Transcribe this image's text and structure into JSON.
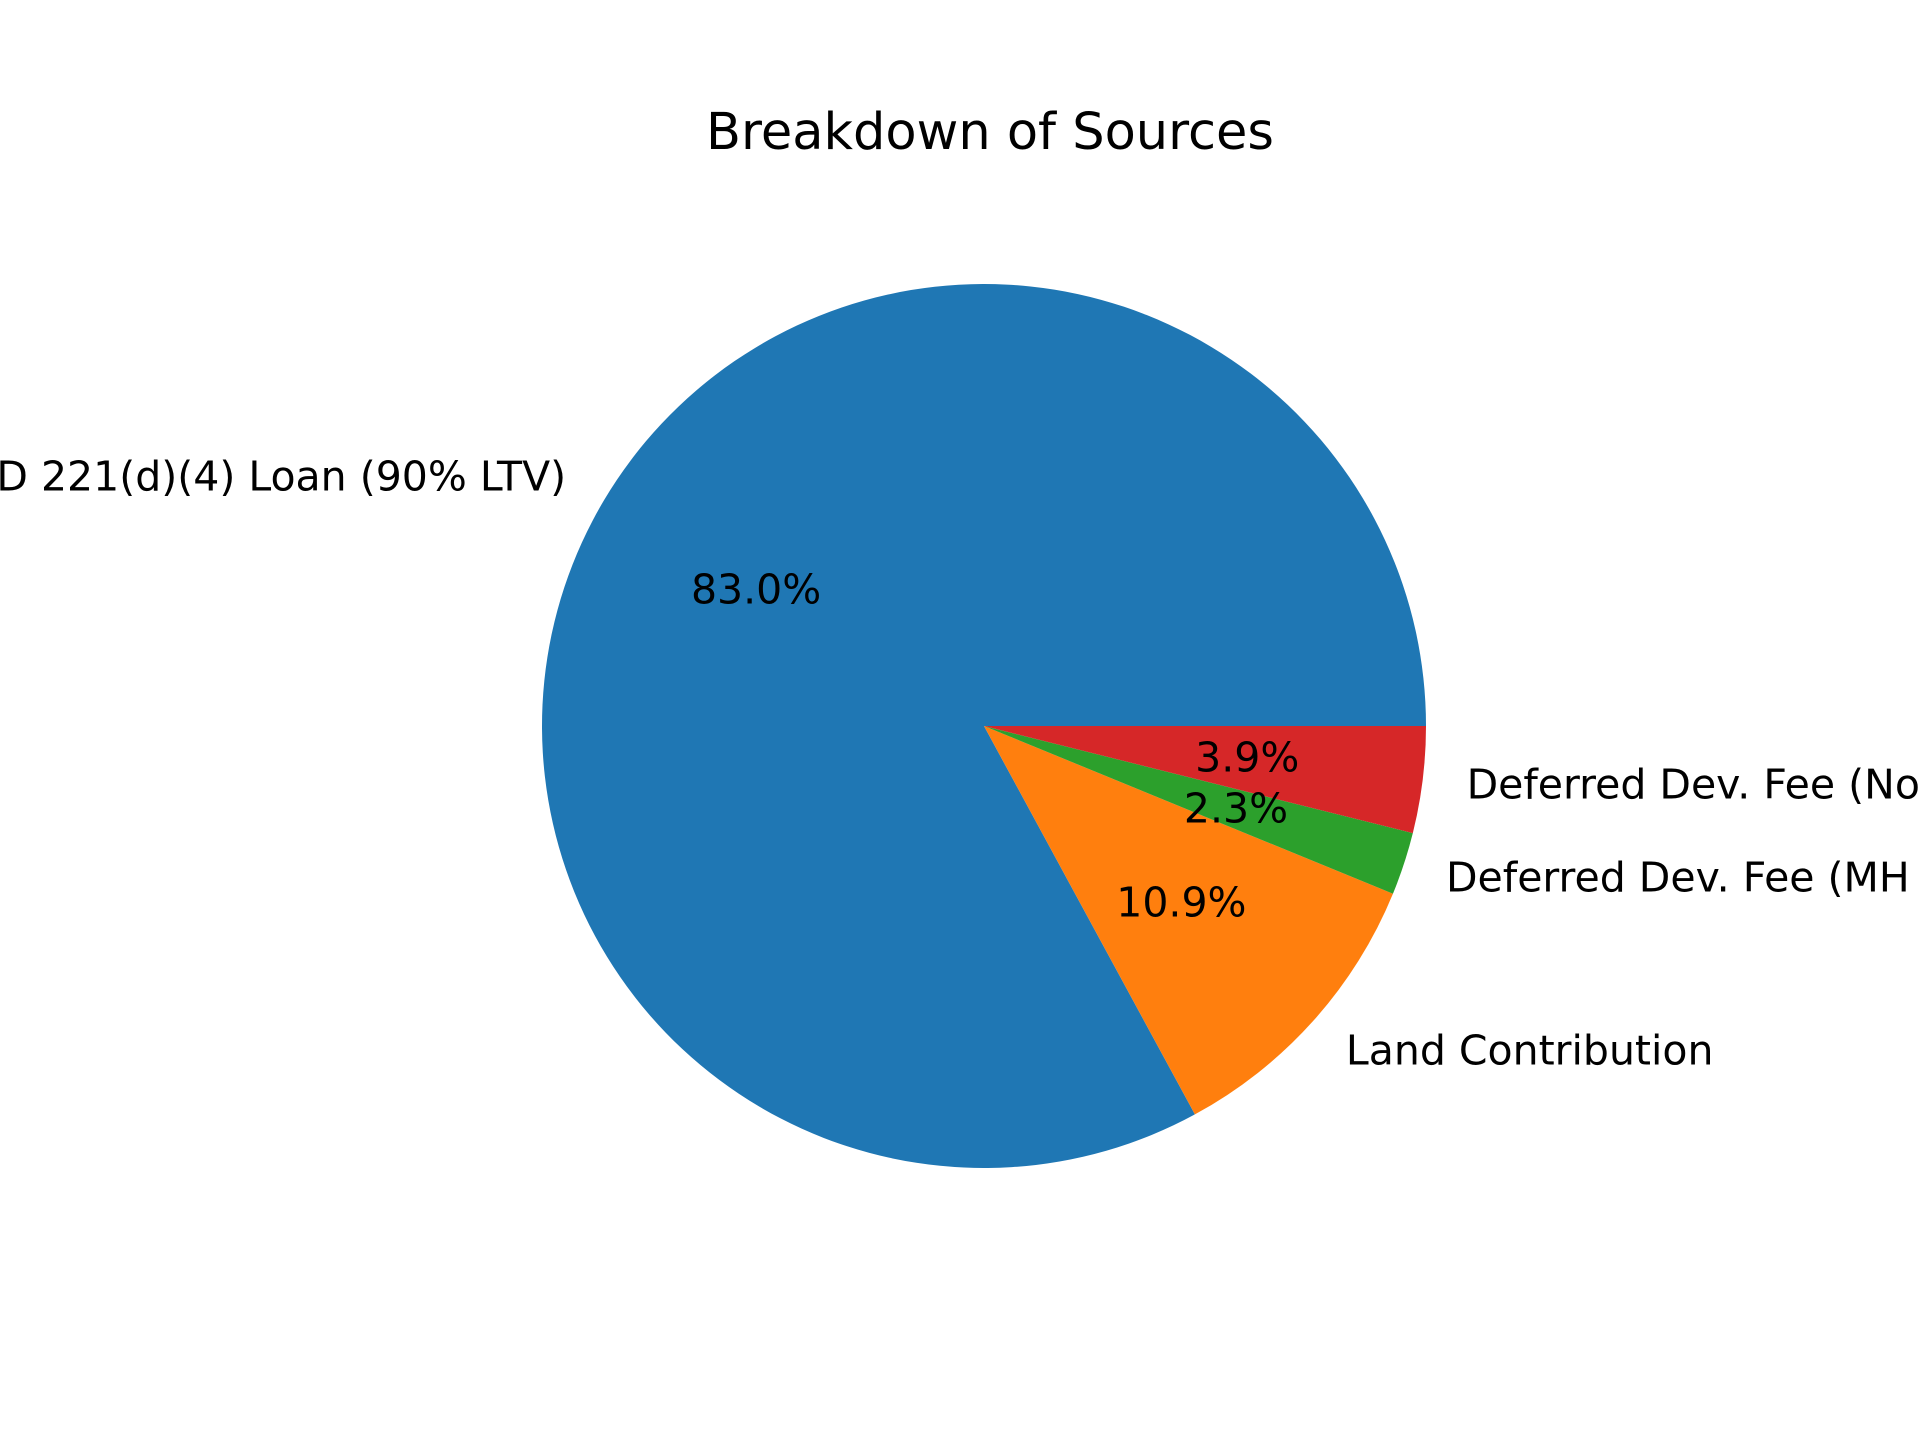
{
  "chart_data": {
    "type": "pie",
    "title": "Breakdown of Sources",
    "legend": "none",
    "start_angle": 0,
    "counterclockwise": true,
    "label_distance": 1.1,
    "pct_distance": 0.6,
    "background": "#ffffff",
    "text_color": "#000000",
    "slices": [
      {
        "label": "D 221(d)(4) Loan (90% LTV)",
        "label_clipped_edge": "left",
        "value": 83.0,
        "pct_label": "83.0%",
        "color": "#1f77b4"
      },
      {
        "label": "Land Contribution",
        "label_clipped_edge": null,
        "value": 10.9,
        "pct_label": "10.9%",
        "color": "#ff7f0e"
      },
      {
        "label": "Deferred Dev. Fee (MH",
        "label_clipped_edge": "right",
        "value": 2.3,
        "pct_label": "2.3%",
        "color": "#2ca02c"
      },
      {
        "label": "Deferred Dev. Fee (No",
        "label_clipped_edge": "right",
        "value": 3.9,
        "pct_label": "3.9%",
        "color": "#d62728"
      }
    ]
  }
}
